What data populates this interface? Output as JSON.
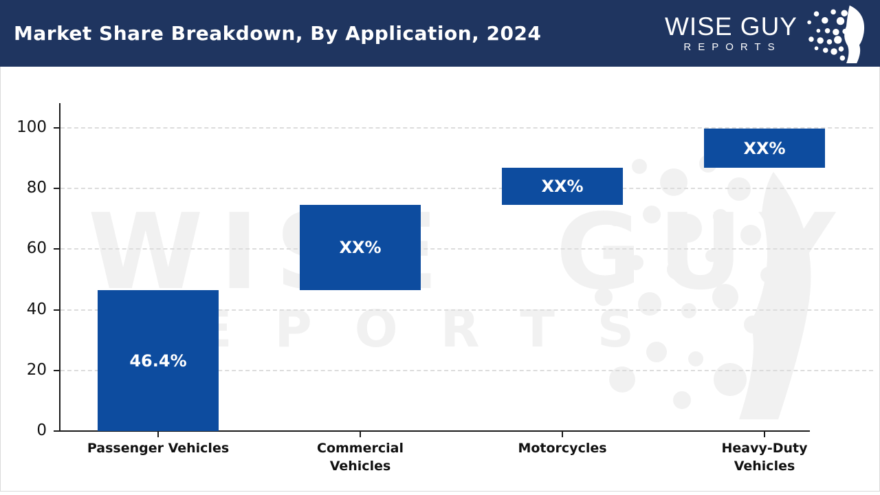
{
  "header": {
    "title": "Market Share Breakdown, By Application, 2024",
    "logo": {
      "wordmark": "WISE GUY",
      "subtext": "REPORTS"
    }
  },
  "watermark": {
    "wordmark": "WISE GUY",
    "subtext": "REPORTS"
  },
  "chart_data": {
    "type": "bar",
    "variant": "waterfall",
    "title": "Market Share Breakdown, By Application, 2024",
    "categories": [
      "Passenger Vehicles",
      "Commercial Vehicles",
      "Motorcycles",
      "Heavy-Duty Vehicles"
    ],
    "category_label_lines": [
      [
        "Passenger Vehicles"
      ],
      [
        "Commercial",
        "Vehicles"
      ],
      [
        "Motorcycles"
      ],
      [
        "Heavy-Duty",
        "Vehicles"
      ]
    ],
    "segments": [
      {
        "category": "Passenger Vehicles",
        "start": 0,
        "end": 46.4,
        "label": "46.4%"
      },
      {
        "category": "Commercial Vehicles",
        "start": 46.4,
        "end": 74.7,
        "label": "XX%"
      },
      {
        "category": "Motorcycles",
        "start": 74.7,
        "end": 86.9,
        "label": "XX%"
      },
      {
        "category": "Heavy-Duty Vehicles",
        "start": 86.9,
        "end": 99.7,
        "label": "XX%"
      }
    ],
    "yticks": [
      0,
      20,
      40,
      60,
      80,
      100
    ],
    "ylim": [
      0,
      107
    ],
    "bar_color": "#0d4c9f",
    "grid": "horizontal-dashed",
    "legend": null,
    "xlabel": "",
    "ylabel": ""
  }
}
